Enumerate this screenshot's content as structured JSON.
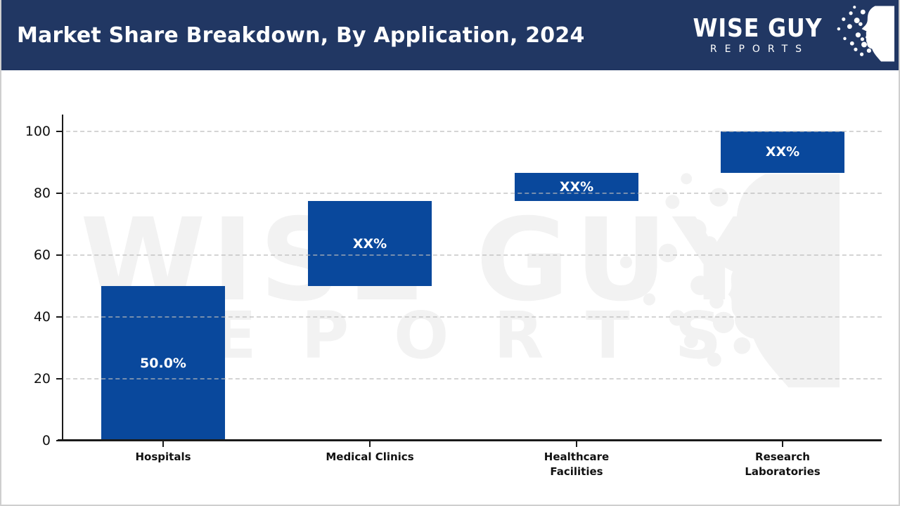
{
  "header": {
    "title": "Market Share Breakdown, By Application, 2024",
    "logo": {
      "name_top": "WISE GUY",
      "name_bottom": "REPORTS"
    }
  },
  "watermark": {
    "line1": "WISE GUY",
    "line2": "REPORTS"
  },
  "colors": {
    "header_bg": "#213763",
    "bar": "#09489c",
    "bar_label_text": "#ffffff",
    "axis": "#1a1a1a",
    "grid": "#bdbdbd",
    "watermark": "#f2f2f2"
  },
  "chart_data": {
    "type": "bar",
    "subtype": "waterfall",
    "title": "Market Share Breakdown, By Application, 2024",
    "categories": [
      "Hospitals",
      "Medical Clinics",
      "Healthcare Facilities",
      "Research Laboratories"
    ],
    "segments": [
      {
        "category": "Hospitals",
        "start": 0,
        "end": 50,
        "label": "50.0%"
      },
      {
        "category": "Medical Clinics",
        "start": 50,
        "end": 77.5,
        "label": "XX%"
      },
      {
        "category": "Healthcare Facilities",
        "start": 77.5,
        "end": 86.6,
        "label": "XX%"
      },
      {
        "category": "Research Laboratories",
        "start": 86.6,
        "end": 100,
        "label": "XX%"
      }
    ],
    "ylim": [
      0,
      100
    ],
    "yticks": [
      0,
      20,
      40,
      60,
      80,
      100
    ],
    "grid": "horizontal-dashed",
    "legend": "none"
  }
}
